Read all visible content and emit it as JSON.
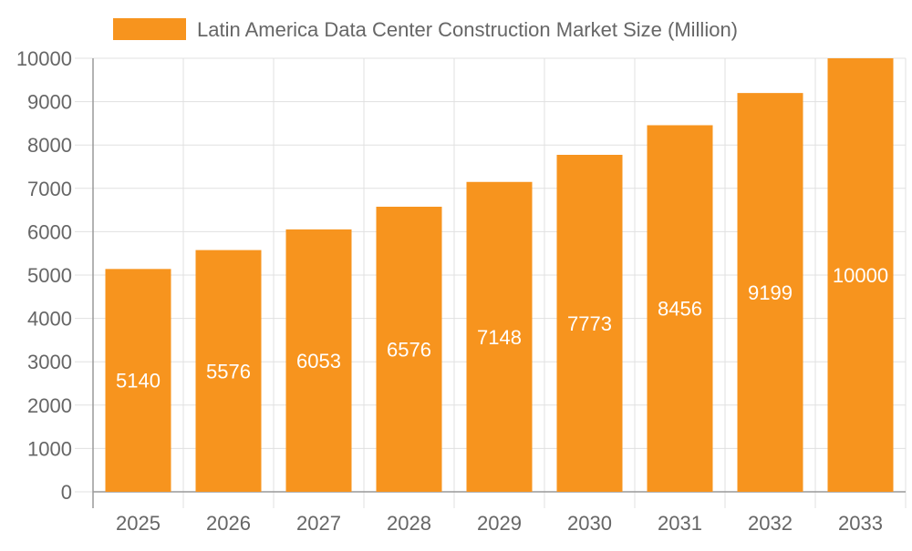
{
  "chart_data": {
    "type": "bar",
    "categories": [
      "2025",
      "2026",
      "2027",
      "2028",
      "2029",
      "2030",
      "2031",
      "2032",
      "2033"
    ],
    "series": [
      {
        "name": "Latin America Data Center Construction Market Size (Million)",
        "values": [
          5140,
          5576,
          6053,
          6576,
          7148,
          7773,
          8456,
          9199,
          10000
        ]
      }
    ],
    "ylim": [
      0,
      10000
    ],
    "yticks": [
      0,
      1000,
      2000,
      3000,
      4000,
      5000,
      6000,
      7000,
      8000,
      9000,
      10000
    ],
    "grid": true,
    "legend_placement": "top",
    "data_labels": true,
    "colors": {
      "bar": "#F7941E",
      "grid": "#e0e0e0",
      "axis": "#999999",
      "text": "#666666",
      "label": "#ffffff"
    }
  }
}
